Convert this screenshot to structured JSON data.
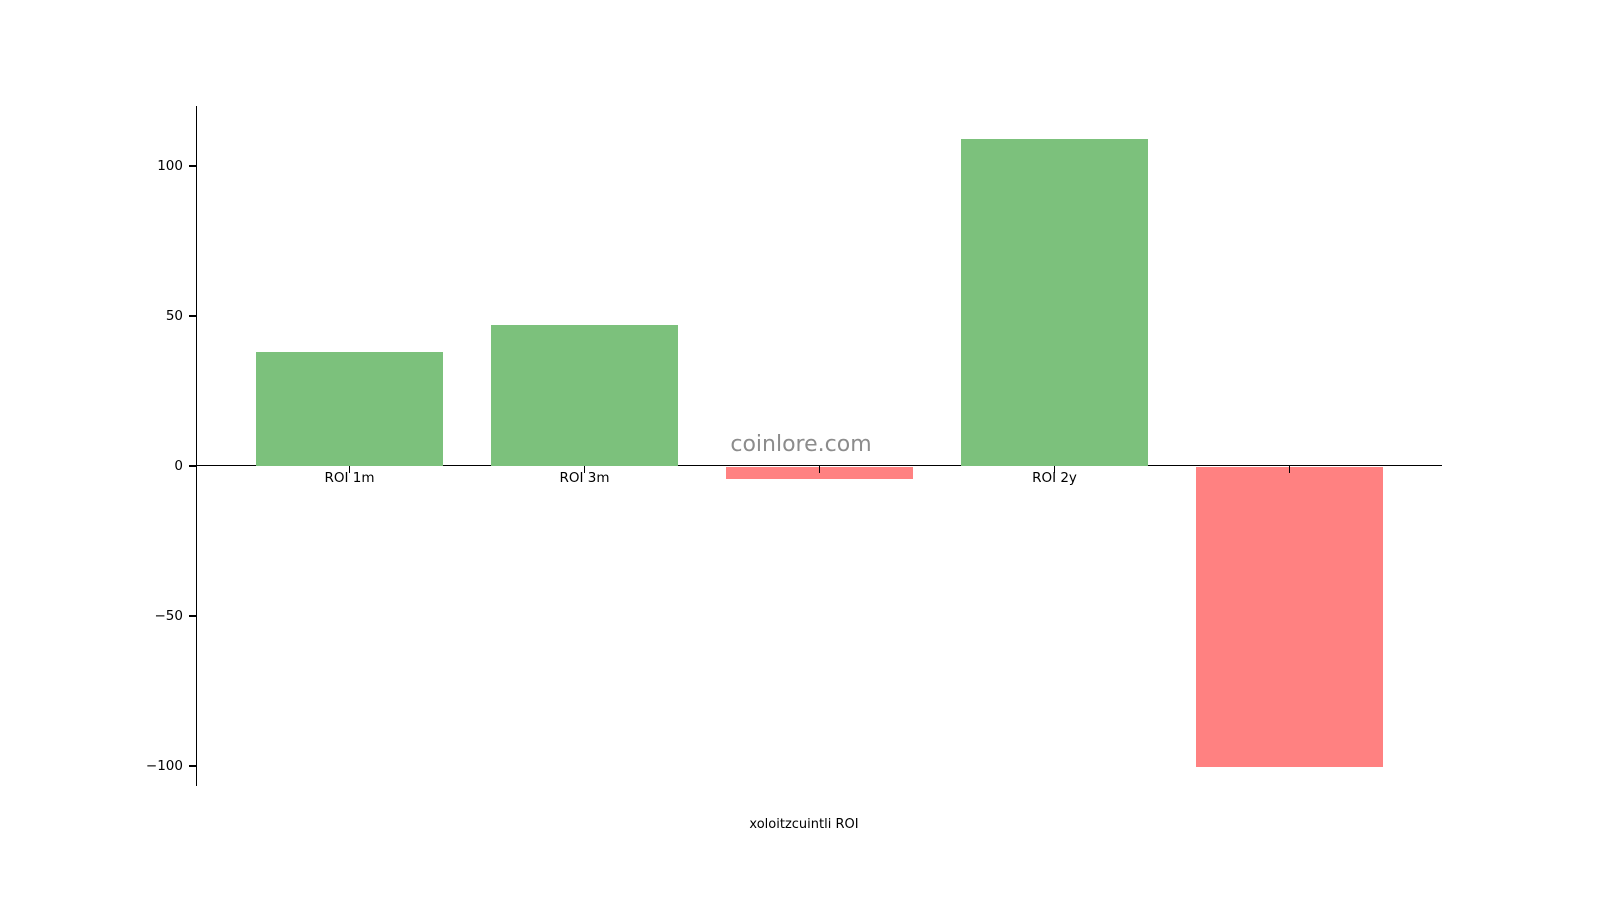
{
  "watermark": "coinlore.com",
  "colors": {
    "positive_bar": "#7cc17c",
    "negative_bar": "#ff8181",
    "watermark_text": "#8c8c8c",
    "axis": "#000000"
  },
  "chart_data": {
    "type": "bar",
    "categories": [
      "ROI 1m",
      "ROI 3m",
      "",
      "ROI 2y",
      ""
    ],
    "values": [
      38,
      47,
      -4,
      109,
      -100
    ],
    "series": [
      {
        "name": "ROI",
        "values": [
          38,
          47,
          -4,
          109,
          -100
        ],
        "colors": [
          "#7cc17c",
          "#7cc17c",
          "#ff8181",
          "#7cc17c",
          "#ff8181"
        ]
      }
    ],
    "title": "",
    "xlabel": "xoloitzcuintli ROI",
    "ylabel": "",
    "yticks": [
      100,
      50,
      0,
      -50,
      -100
    ],
    "ylim": [
      -106,
      120
    ],
    "grid": false,
    "legend": "none",
    "baseline": 0
  }
}
